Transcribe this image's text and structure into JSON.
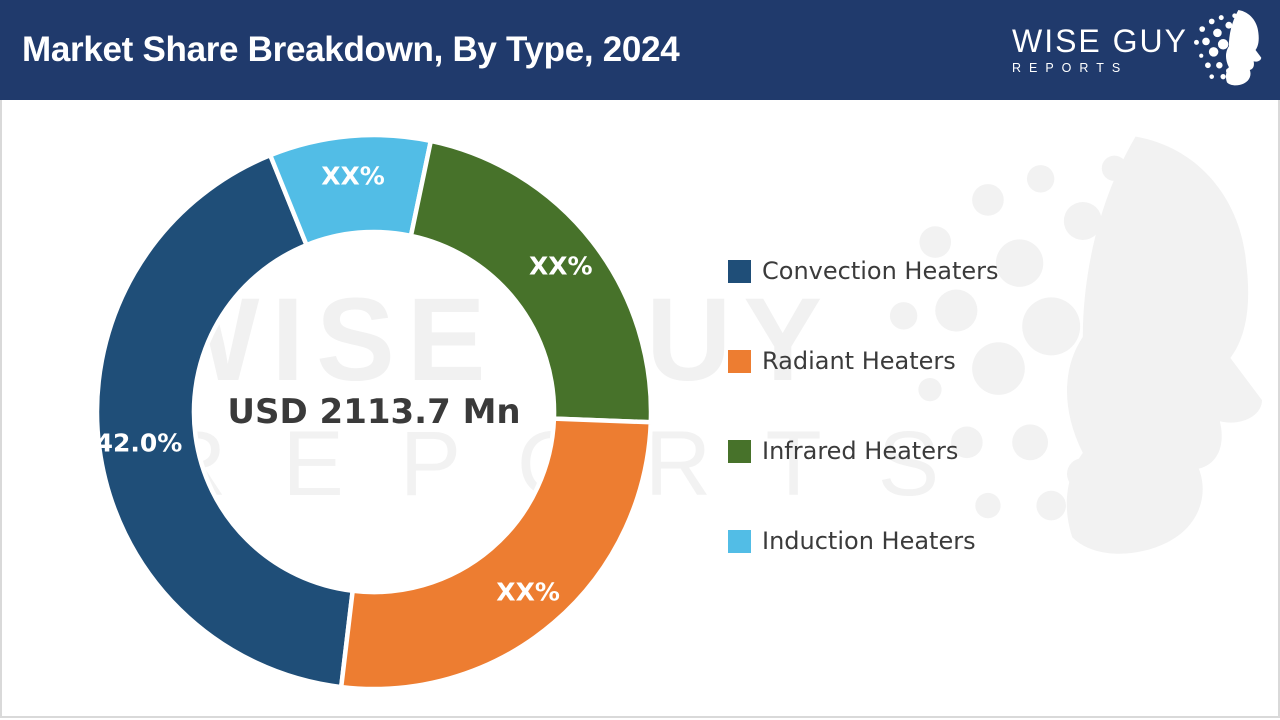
{
  "header": {
    "title": "Market Share Breakdown, By Type, 2024",
    "bg_color": "#203A6C",
    "logo": {
      "line1": "WISE GUY",
      "line2": "REPORTS"
    }
  },
  "watermark": {
    "line1": "WISE GUY",
    "line2": "REPORTS"
  },
  "chart_data": {
    "type": "pie",
    "subtype": "donut",
    "title": "Market Share Breakdown, By Type, 2024",
    "center_total": "USD 2113.7 Mn",
    "donut_hole_ratio": 0.65,
    "start_angle_deg": 186.8,
    "draw_order": [
      0,
      3,
      2,
      1
    ],
    "gap_stroke_color": "#ffffff",
    "legend_position": "right",
    "segments": [
      {
        "label": "Convection Heaters",
        "value_pct": 42.0,
        "display": "42.0%",
        "color": "#1F4E78"
      },
      {
        "label": "Radiant Heaters",
        "value_pct": 26.3,
        "display": "XX%",
        "color": "#ED7D31"
      },
      {
        "label": "Infrared Heaters",
        "value_pct": 22.3,
        "display": "XX%",
        "color": "#47722A"
      },
      {
        "label": "Induction Heaters",
        "value_pct": 9.4,
        "display": "XX%",
        "color": "#52BDE6"
      }
    ]
  }
}
